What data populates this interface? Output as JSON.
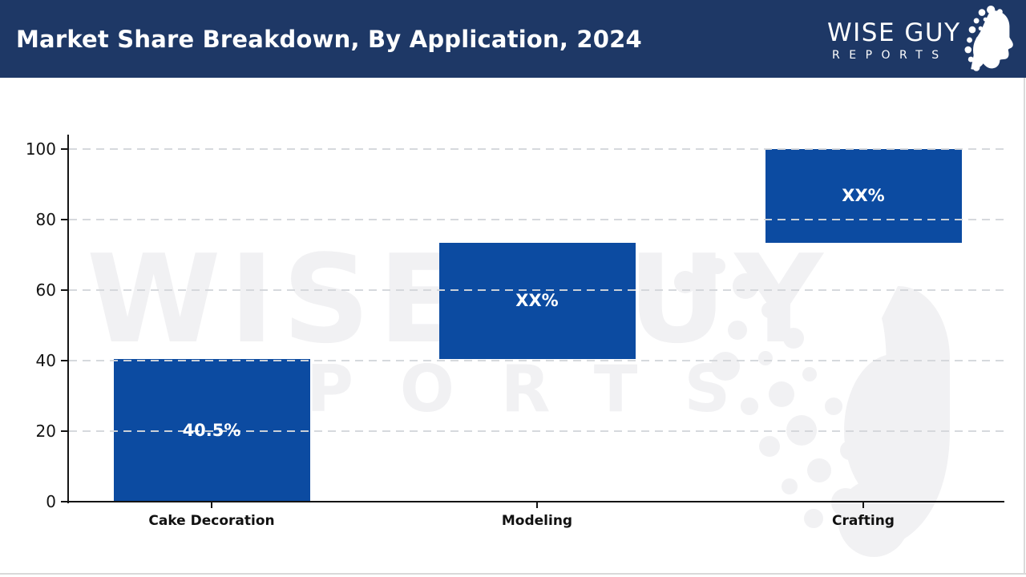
{
  "header": {
    "title": "Market Share Breakdown, By Application, 2024",
    "logo_line1": "WISE GUY",
    "logo_line2": "REPORTS"
  },
  "watermark": {
    "line1": "WISE GUY",
    "line2": "REPORTS"
  },
  "chart_data": {
    "type": "bar",
    "variant": "waterfall-breakdown",
    "title": "Market Share Breakdown, By Application, 2024",
    "categories": [
      "Cake Decoration",
      "Modeling",
      "Crafting"
    ],
    "series": [
      {
        "name": "Cake Decoration",
        "start": 0,
        "end": 40.5,
        "label": "40.5%"
      },
      {
        "name": "Modeling",
        "start": 40.5,
        "end": 73.5,
        "label": "XX%"
      },
      {
        "name": "Crafting",
        "start": 73.5,
        "end": 100,
        "label": "XX%"
      }
    ],
    "xlabel": "",
    "ylabel": "",
    "ylim": [
      0,
      100
    ],
    "yticks": [
      0,
      20,
      40,
      60,
      80,
      100
    ],
    "grid": "horizontal-dashed",
    "legend": "none",
    "colors": {
      "bar": "#0c4ba1",
      "bar_label": "#ffffff",
      "axis": "#141414",
      "grid": "#d4d7db",
      "header_bg": "#1e3866",
      "watermark": "#f1f1f3"
    }
  }
}
